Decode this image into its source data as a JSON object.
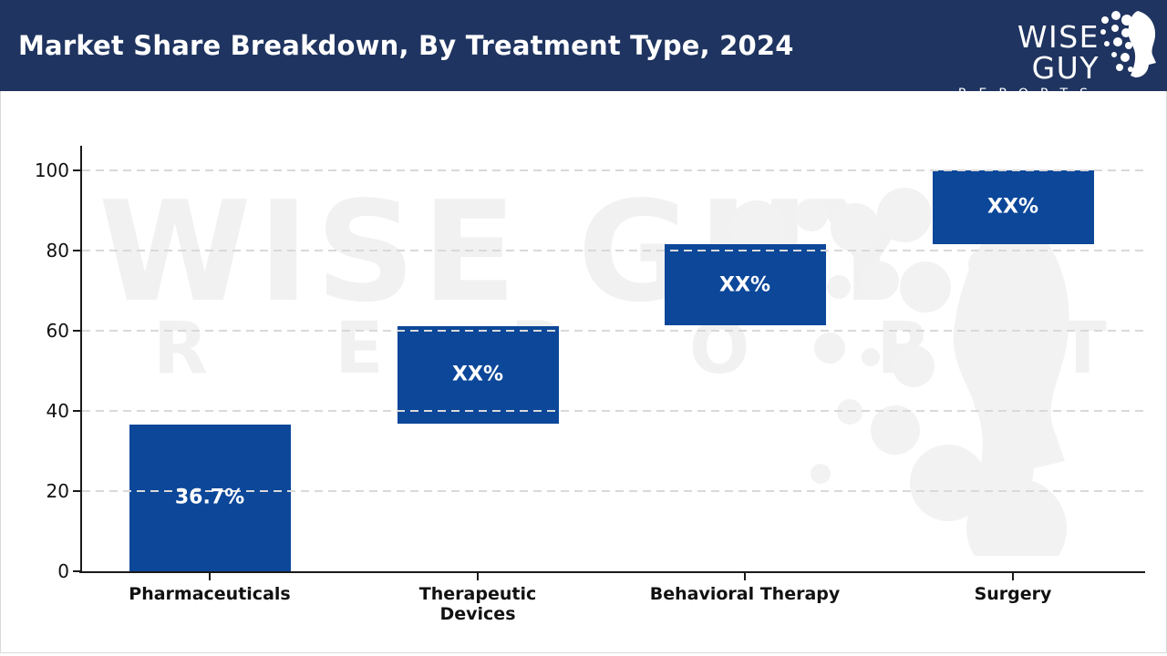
{
  "header": {
    "title": "Market Share Breakdown, By Treatment Type, 2024",
    "bg_color": "#1f3460",
    "logo": {
      "line1": "WISE GUY",
      "line2": "REPORTS",
      "icon": "dotted-head-profile"
    }
  },
  "watermark": {
    "line1": "WISE GUY",
    "line2": "R E P O R T S",
    "motif": "dotted-head",
    "color": "#f1f1f1"
  },
  "chart_data": {
    "type": "bar",
    "subtype": "floating-waterfall",
    "title": "Market Share Breakdown, By Treatment Type, 2024",
    "xlabel": "",
    "ylabel": "",
    "ylim": [
      0,
      100
    ],
    "yticks": [
      0,
      20,
      40,
      60,
      80,
      100
    ],
    "grid": "horizontal-dashed-over-bars",
    "legend": "none",
    "bar_color": "#0c4799",
    "value_label_color": "#ffffff",
    "categories": [
      "Pharmaceuticals",
      "Therapeutic Devices",
      "Behavioral Therapy",
      "Surgery"
    ],
    "category_label_lines": [
      [
        "Pharmaceuticals"
      ],
      [
        "Therapeutic",
        "Devices"
      ],
      [
        "Behavioral Therapy"
      ],
      [
        "Surgery"
      ]
    ],
    "bars": [
      {
        "category": "Pharmaceuticals",
        "label": "36.7%",
        "start": 0,
        "end": 36.7
      },
      {
        "category": "Therapeutic Devices",
        "label": "XX%",
        "start": 36.8,
        "end": 61.2
      },
      {
        "category": "Behavioral Therapy",
        "label": "XX%",
        "start": 61.3,
        "end": 81.6
      },
      {
        "category": "Surgery",
        "label": "XX%",
        "start": 81.6,
        "end": 100
      }
    ]
  }
}
